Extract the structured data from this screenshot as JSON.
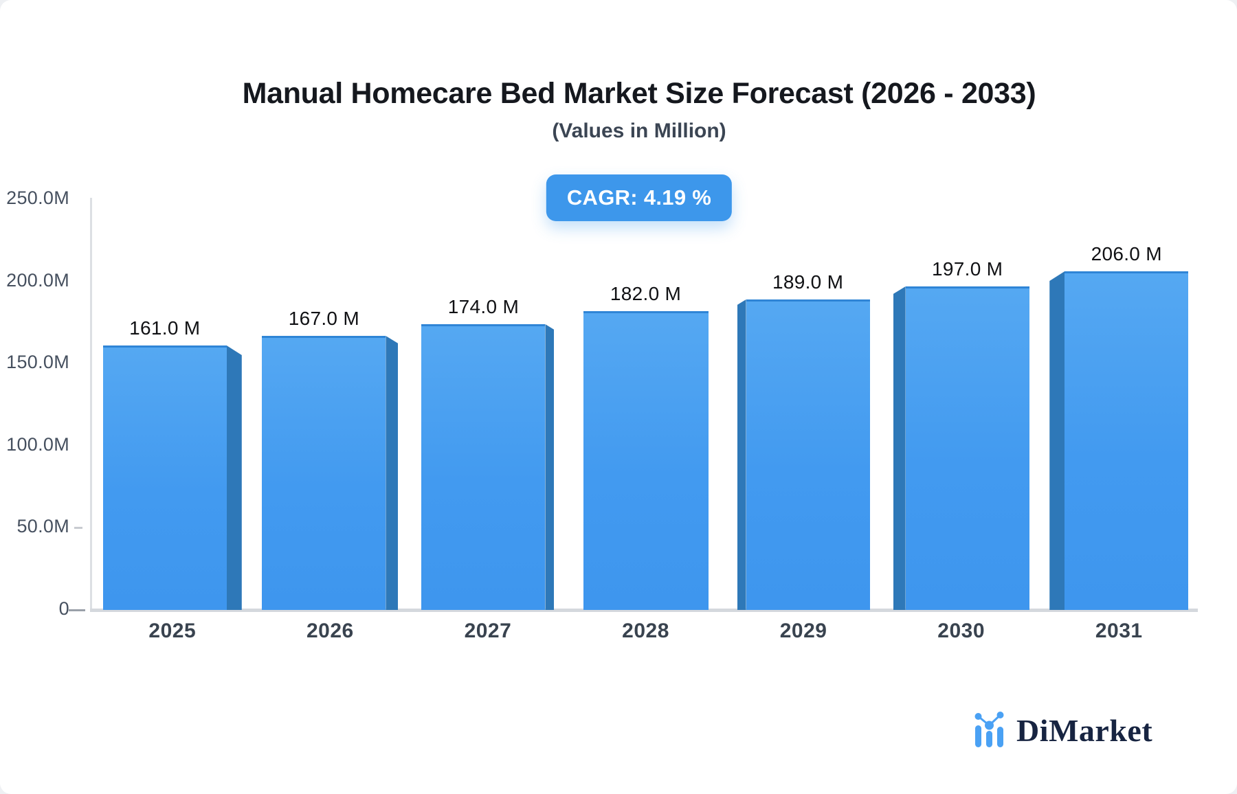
{
  "header": {
    "title": "Manual Homecare Bed Market Size Forecast (2026 - 2033)",
    "subtitle": "(Values in Million)",
    "cagr_badge": "CAGR: 4.19 %"
  },
  "chart_data": {
    "type": "bar",
    "title": "Manual Homecare Bed Market Size Forecast (2026 - 2033)",
    "subtitle": "(Values in Million)",
    "cagr_percent": 4.19,
    "unit": "Million",
    "categories": [
      "2025",
      "2026",
      "2027",
      "2028",
      "2029",
      "2030",
      "2031"
    ],
    "values": [
      161,
      167,
      174,
      182,
      189,
      197,
      206
    ],
    "value_labels": [
      "161.0 M",
      "167.0 M",
      "174.0 M",
      "182.0 M",
      "189.0 M",
      "197.0 M",
      "206.0 M"
    ],
    "ylim": [
      0,
      250
    ],
    "ytick_values": [
      250,
      200,
      150,
      100,
      50,
      0
    ],
    "ytick_labels": [
      "250.0M",
      "200.0M",
      "150.0M",
      "100.0M",
      "50.0M",
      "0"
    ],
    "grid": false,
    "legend": "none",
    "bar_style": "3d-perspective",
    "xlabel": "",
    "ylabel": ""
  },
  "colors": {
    "accent_badge": "#3D97EB",
    "bar_face_top": "#55A8F2",
    "bar_face_bottom": "#3E96EE",
    "bar_face_cap": "#2F85D6",
    "bar_side": "#2E78B8",
    "axis_line": "#D4D8DD",
    "axis_text": "#46505F",
    "title_text": "#15181E",
    "logo_navy": "#172441",
    "logo_blue": "#4AA1F4",
    "background": "#FFFFFF"
  },
  "branding": {
    "logo_text": "DiMarket",
    "logo_icon": "bar-line-chart-icon"
  }
}
